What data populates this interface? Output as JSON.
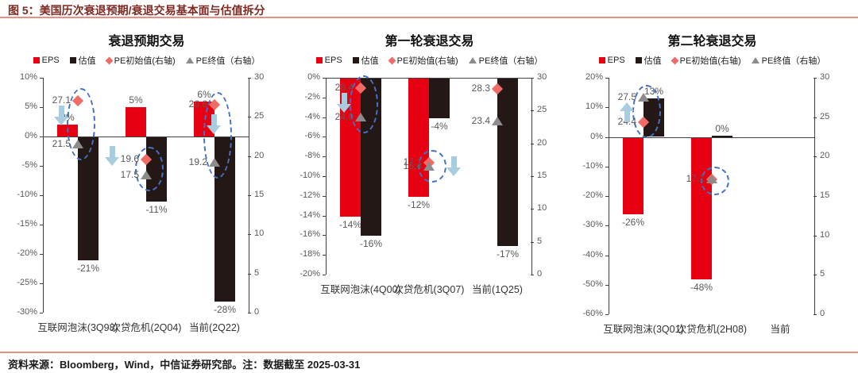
{
  "page": {
    "figure_title": "图 5：美国历次衰退预期/衰退交易基本面与估值拆分",
    "footer": "资料来源：Bloomberg，Wind，中信证券研究部。注：数据截至 2025-03-31"
  },
  "colors": {
    "eps_bar": "#e60012",
    "val_bar": "#231815",
    "pe_start_marker": "#ef6c66",
    "pe_end_marker": "#8c8c8c",
    "arrow": "#a9cdde",
    "ellipse": "#4472c4",
    "accent_line": "#e89084",
    "title_text": "#7e2a22"
  },
  "chart_data": [
    {
      "type": "bar",
      "title": "衰退预期交易",
      "legend": [
        "EPS",
        "估值",
        "PE初始值(右轴)",
        "PE终值（右轴）"
      ],
      "left_axis": {
        "max": 10,
        "min": -30,
        "step": 5,
        "unit": "%"
      },
      "right_axis": {
        "max": 30,
        "min": 0,
        "step": 5
      },
      "groups": [
        {
          "category": "互联网泡沫(3Q98)",
          "eps": 2,
          "val": -21,
          "pe_start": 27.1,
          "pe_end": 21.5,
          "pe_start_label": "27.1",
          "pe_end_label": "21.5",
          "ellipse": true,
          "arrow": {
            "dir": "down",
            "pos": "left-upper"
          }
        },
        {
          "category": "次贷危机(2Q04)",
          "eps": 5,
          "val": -11,
          "pe_start": 19.6,
          "pe_end": 17.5,
          "pe_start_label": "19.6",
          "pe_end_label": "17.5",
          "ellipse": true,
          "arrow": {
            "dir": "down",
            "pos": "far-left"
          }
        },
        {
          "category": "当前(2Q22)",
          "eps": 6,
          "val": -28,
          "pe_start": 26.6,
          "pe_end": 19.2,
          "pe_start_label": "26.6",
          "pe_end_label": "19.2",
          "ellipse": true,
          "arrow": {
            "dir": "down",
            "pos": "inside"
          }
        }
      ]
    },
    {
      "type": "bar",
      "title": "第一轮衰退交易",
      "legend": [
        "EPS",
        "估值",
        "PE初始值(右轴)",
        "PE终值（右轴）"
      ],
      "left_axis": {
        "max": 0,
        "min": -20,
        "step": 2,
        "unit": "%"
      },
      "right_axis": {
        "max": 30,
        "min": 0,
        "step": 5
      },
      "groups": [
        {
          "category": "互联网泡沫(4Q00)",
          "eps": -14,
          "val": -16,
          "pe_start": 28.4,
          "pe_end": 24.0,
          "pe_start_label": "28.4",
          "pe_end_label": "24.0",
          "ellipse": true,
          "arrow": {
            "dir": "down",
            "pos": "left-upper"
          }
        },
        {
          "category": "次贷危机(3Q07)",
          "eps": -12,
          "val": -4,
          "pe_start": 17.1,
          "pe_end": 16.4,
          "pe_start_label": "17.1",
          "pe_end_label": "16.4",
          "ellipse": true,
          "arrow": {
            "dir": "down",
            "pos": "right"
          }
        },
        {
          "category": "当前(1Q25)",
          "eps": null,
          "val": -17,
          "pe_start": 28.3,
          "pe_end": 23.4,
          "pe_start_label": "28.3",
          "pe_end_label": "23.4",
          "ellipse": false,
          "arrow": null
        }
      ]
    },
    {
      "type": "bar",
      "title": "第二轮衰退交易",
      "legend": [
        "EPS",
        "估值",
        "PE初始值(右轴)",
        "PE终值（右轴）"
      ],
      "left_axis": {
        "max": 20,
        "min": -60,
        "step": 10,
        "unit": "%"
      },
      "right_axis": {
        "max": 30,
        "min": 0,
        "step": 5
      },
      "groups": [
        {
          "category": "互联网泡沫(3Q01)",
          "eps": -26,
          "val": 13,
          "pe_start": 24.4,
          "pe_end": 27.5,
          "pe_start_label": "24.4",
          "pe_end_label": "27.5",
          "ellipse": true,
          "arrow": {
            "dir": "up",
            "pos": "left-upper"
          }
        },
        {
          "category": "次贷危机(2H08)",
          "eps": -48,
          "val": 0,
          "pe_start": 17.1,
          "pe_end": 17.1,
          "pe_start_label": "17.1",
          "pe_end_label": "",
          "ellipse": true,
          "arrow": null
        },
        {
          "category": "当前",
          "eps": null,
          "val": null,
          "pe_start": null,
          "pe_end": null,
          "pe_start_label": "",
          "pe_end_label": "",
          "ellipse": false,
          "arrow": null
        }
      ]
    }
  ]
}
